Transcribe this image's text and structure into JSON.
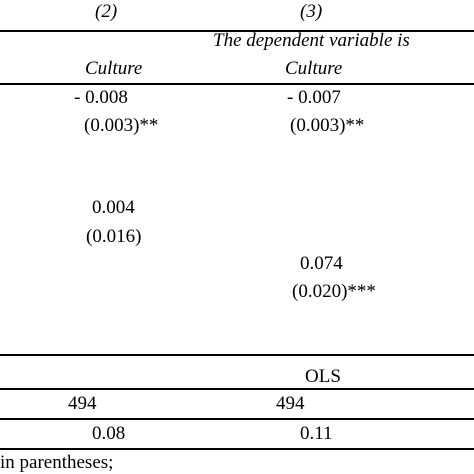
{
  "table": {
    "columns": [
      "(2)",
      "(3)"
    ],
    "dependent_variable_note": "The dependent variable is",
    "dependent_variables": [
      "Culture",
      "Culture"
    ],
    "rows": [
      [
        "- 0.008",
        "- 0.007"
      ],
      [
        "(0.003)**",
        "(0.003)**"
      ],
      [
        "0.004",
        null
      ],
      [
        "(0.016)",
        null
      ],
      [
        null,
        "0.074"
      ],
      [
        null,
        "(0.020)***"
      ]
    ],
    "method": [
      null,
      "OLS"
    ],
    "observations": [
      "494",
      "494"
    ],
    "r_squared": [
      "0.08",
      "0.11"
    ],
    "note": "in parentheses;"
  }
}
